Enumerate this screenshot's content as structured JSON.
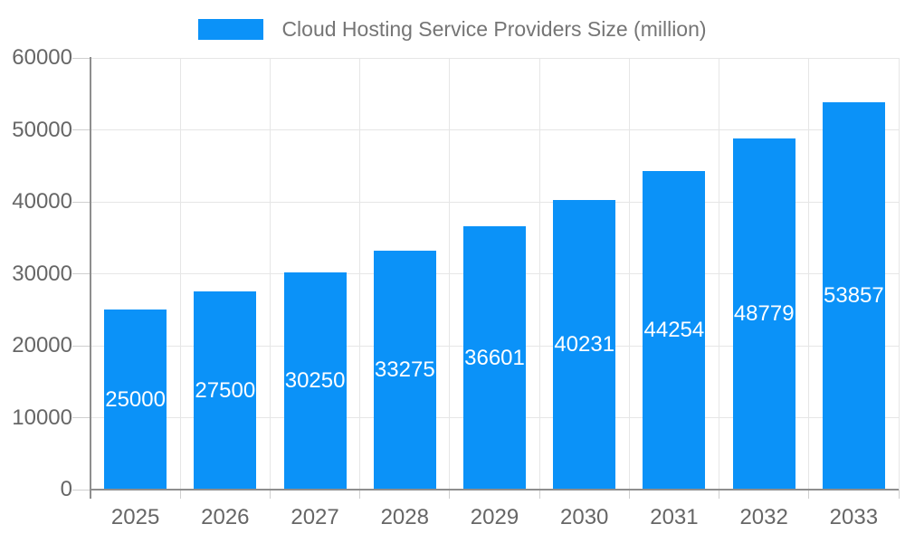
{
  "chart_data": {
    "type": "bar",
    "title": "Cloud Hosting Service Providers Size (million)",
    "legend_label": "Cloud Hosting Service Providers Size (million)",
    "legend_position": "top",
    "categories": [
      "2025",
      "2026",
      "2027",
      "2028",
      "2029",
      "2030",
      "2031",
      "2032",
      "2033"
    ],
    "series": [
      {
        "name": "Cloud Hosting Service Providers Size (million)",
        "values": [
          25000,
          27500,
          30250,
          33275,
          36601,
          40231,
          44254,
          48779,
          53857
        ]
      }
    ],
    "values": [
      25000,
      27500,
      30250,
      33275,
      36601,
      40231,
      44254,
      48779,
      53857
    ],
    "value_labels_shown": true,
    "xlabel": "",
    "ylabel": "",
    "ylim": [
      0,
      60000
    ],
    "ytick_step": 10000,
    "yticks": [
      0,
      10000,
      20000,
      30000,
      40000,
      50000,
      60000
    ],
    "grid": true,
    "colors": {
      "bar": "#0b92f8",
      "value_label": "#ffffff",
      "grid_line": "#e6e6e6",
      "tick": "#cfcfcf",
      "axis_line": "#8e8e8e",
      "axis_text": "#666666",
      "legend_text": "#757575",
      "background": "#ffffff"
    }
  }
}
